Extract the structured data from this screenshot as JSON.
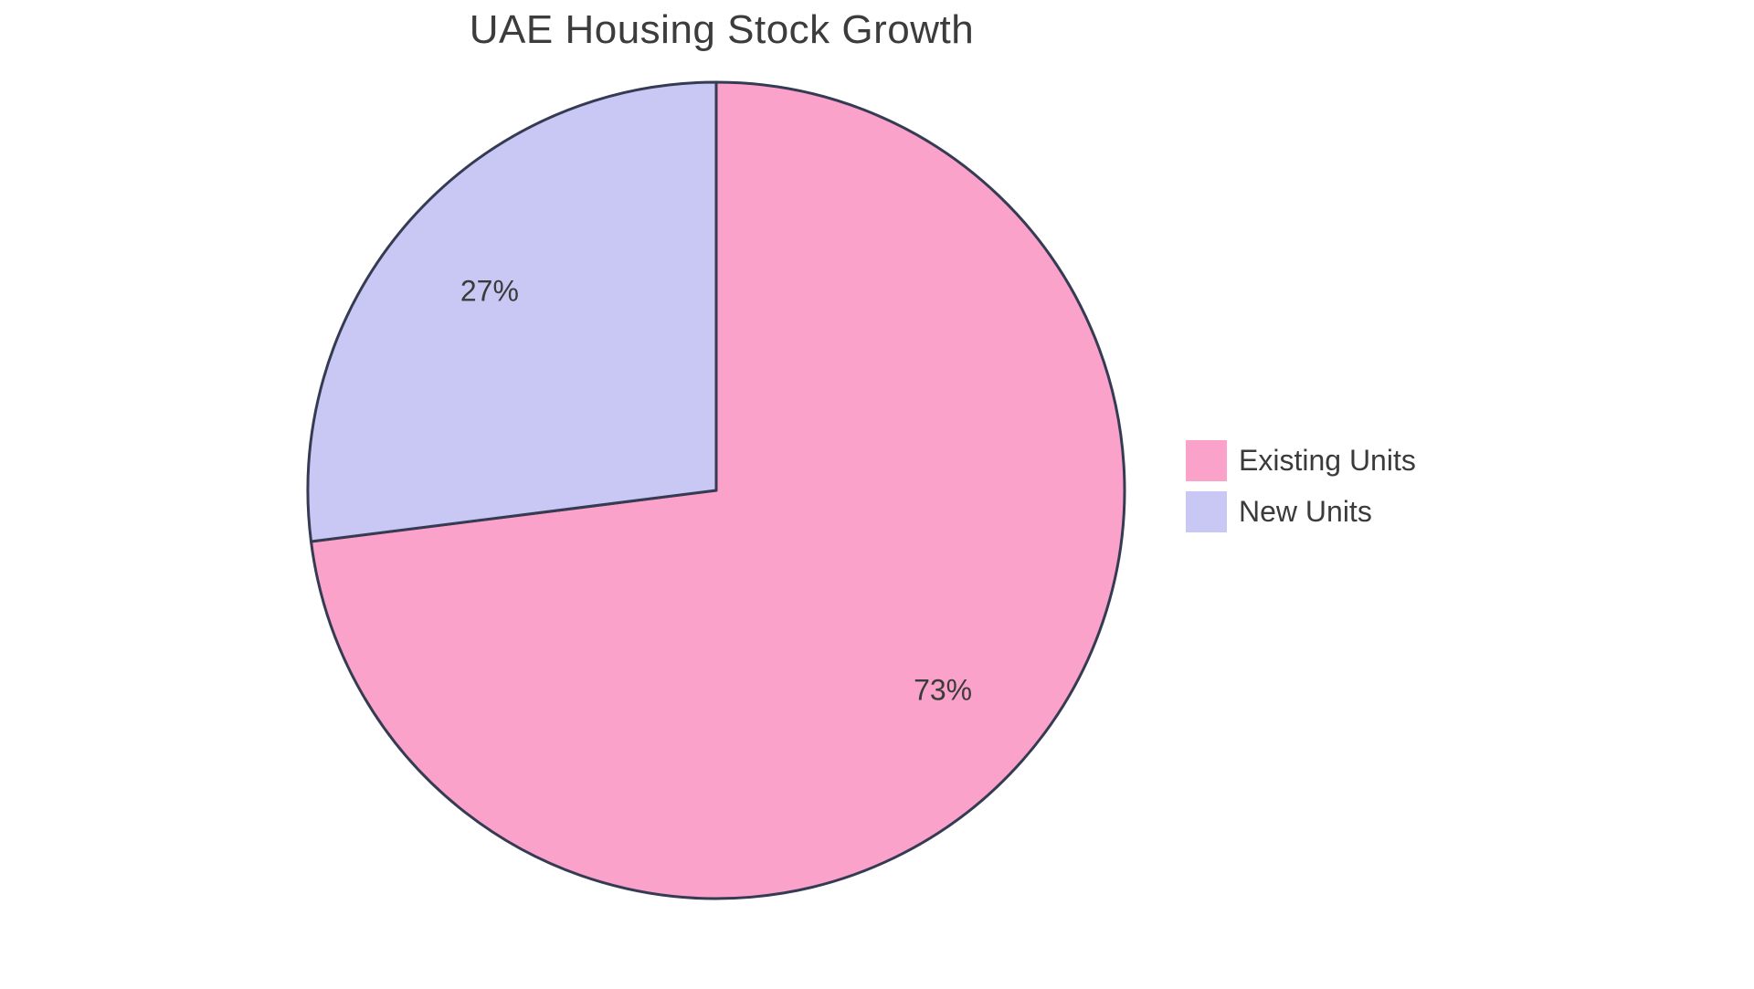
{
  "chart_data": {
    "type": "pie",
    "title": "UAE Housing Stock Growth",
    "slices": [
      {
        "label": "Existing Units",
        "value": 73,
        "color": "#FAA2C9"
      },
      {
        "label": "New Units",
        "value": 27,
        "color": "#C9C8F5"
      }
    ],
    "unit": "%",
    "start_angle_deg": -90,
    "direction": "clockwise",
    "stroke_color": "#363B54",
    "stroke_width": 3,
    "label_color": "#3B3B3B",
    "label_radius_ratio": 0.74,
    "legend_position": "right",
    "background_color": "#FFFFFF"
  }
}
